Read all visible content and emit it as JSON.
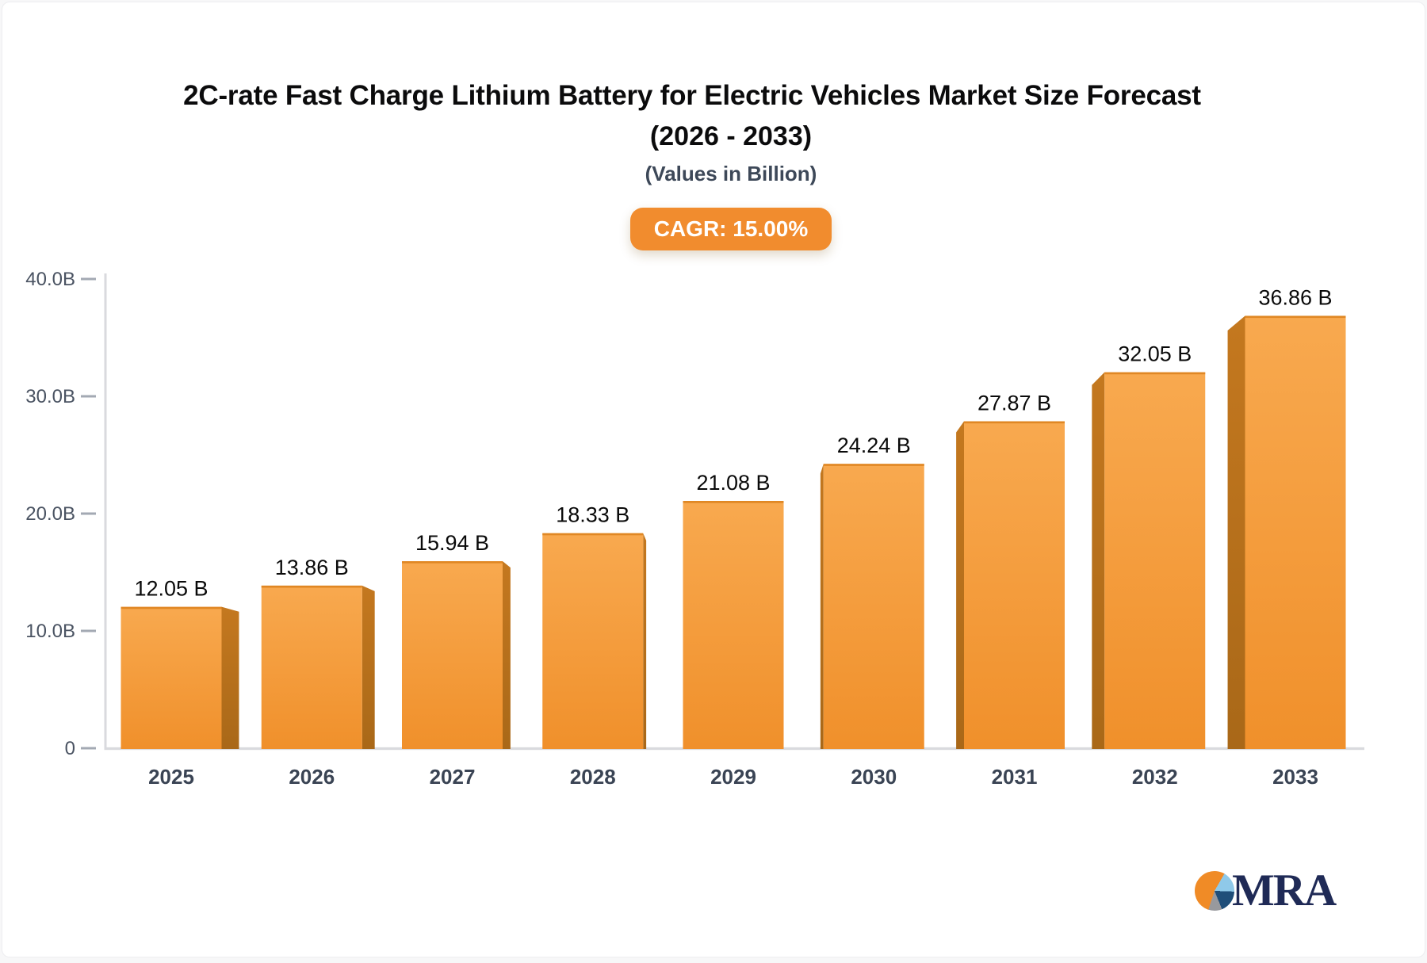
{
  "page": {
    "background": "#f7f7f8",
    "card_background": "#ffffff"
  },
  "header": {
    "title_line1": "2C-rate Fast Charge Lithium Battery for Electric Vehicles Market Size Forecast",
    "title_line2": "(2026 - 2033)",
    "subtitle": "(Values in Billion)",
    "cagr_label": "CAGR: 15.00%",
    "cagr_bg": "#F18C2E",
    "title_color": "#0b0b0c",
    "subtitle_color": "#3D4858"
  },
  "chart_data": {
    "type": "bar",
    "title": "2C-rate Fast Charge Lithium Battery for Electric Vehicles Market Size Forecast (2026 - 2033)",
    "subtitle": "(Values in Billion)",
    "cagr_annotation": "CAGR: 15.00%",
    "categories": [
      "2025",
      "2026",
      "2027",
      "2028",
      "2029",
      "2030",
      "2031",
      "2032",
      "2033"
    ],
    "values": [
      12.05,
      13.86,
      15.94,
      18.33,
      21.08,
      24.24,
      27.87,
      32.05,
      36.86
    ],
    "value_labels": [
      "12.05 B",
      "13.86 B",
      "15.94 B",
      "18.33 B",
      "21.08 B",
      "24.24 B",
      "27.87 B",
      "32.05 B",
      "36.86 B"
    ],
    "unit": "Billion",
    "y_ticks": [
      "0",
      "10.0B",
      "20.0B",
      "30.0B",
      "40.0B"
    ],
    "ylim": [
      0,
      40
    ],
    "grid": false,
    "legend": false,
    "bar_style": "3d-perspective",
    "colors": {
      "bar_top": "#F8A94F",
      "bar_bottom": "#F0902B",
      "bar_top_edge": "#DD831F",
      "side_top": "#C4781F",
      "side_bottom": "#A96818",
      "axis": "#D9DADE",
      "tick": "#A3A9B3",
      "tick_label": "#4A5362",
      "year_label": "#3A4454",
      "value_label": "#0A0A0A"
    }
  },
  "logo": {
    "text": "MRA",
    "text_color": "#1F2A56",
    "pie_colors": {
      "orange": "#F08B26",
      "lightblue": "#8FC9E9",
      "navy": "#1F4E79",
      "gray": "#98999D"
    }
  }
}
